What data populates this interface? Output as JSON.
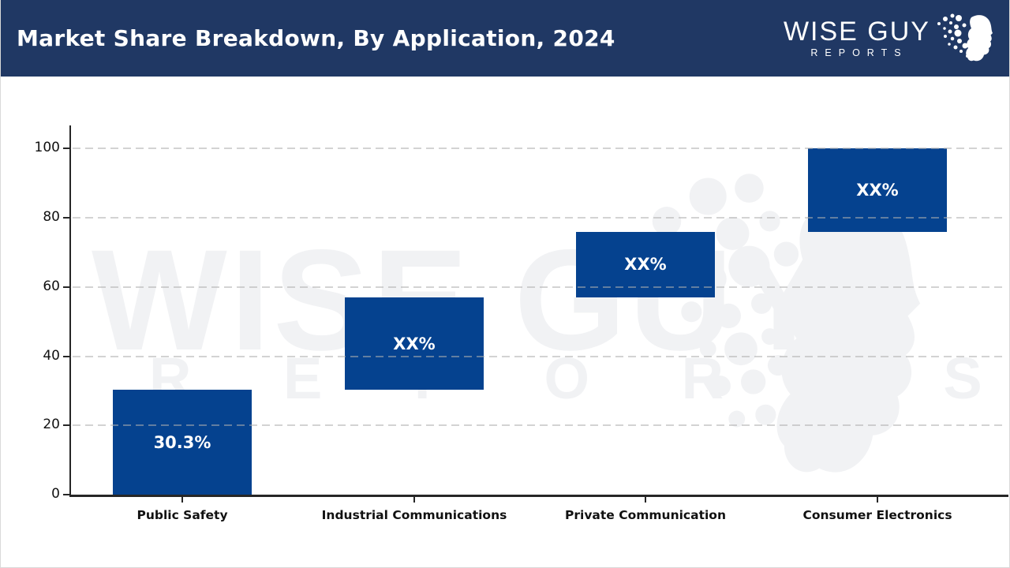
{
  "header": {
    "title": "Market Share Breakdown, By Application, 2024",
    "logo": {
      "line1": "WISE GUY",
      "line2": "REPORTS"
    }
  },
  "watermark": {
    "line1": "WISE GUY",
    "line2": "R E P O R T S"
  },
  "chart_data": {
    "type": "bar",
    "subtype": "floating-segment-breakdown",
    "title": "Market Share Breakdown, By Application, 2024",
    "categories": [
      "Public Safety",
      "Industrial Communications",
      "Private Communication",
      "Consumer Electronics"
    ],
    "series": [
      {
        "name": "Public Safety",
        "label": "30.3%",
        "start": 0,
        "end": 30.3
      },
      {
        "name": "Industrial Communications",
        "label": "XX%",
        "start": 30.3,
        "end": 57
      },
      {
        "name": "Private Communication",
        "label": "XX%",
        "start": 57,
        "end": 76
      },
      {
        "name": "Consumer Electronics",
        "label": "XX%",
        "start": 76,
        "end": 100
      }
    ],
    "y_ticks": [
      0,
      20,
      40,
      60,
      80,
      100
    ],
    "ylim": [
      0,
      106
    ],
    "xlabel": "",
    "ylabel": "",
    "grid": "horizontal-dashed",
    "legend": "none",
    "colors": {
      "bar": "#05428f",
      "bar_label": "#ffffff",
      "axis": "#262626",
      "grid": "rgba(175,175,175,0.55)",
      "header_bg": "#203864",
      "header_text": "#ffffff",
      "watermark": "#f1f2f4"
    }
  }
}
